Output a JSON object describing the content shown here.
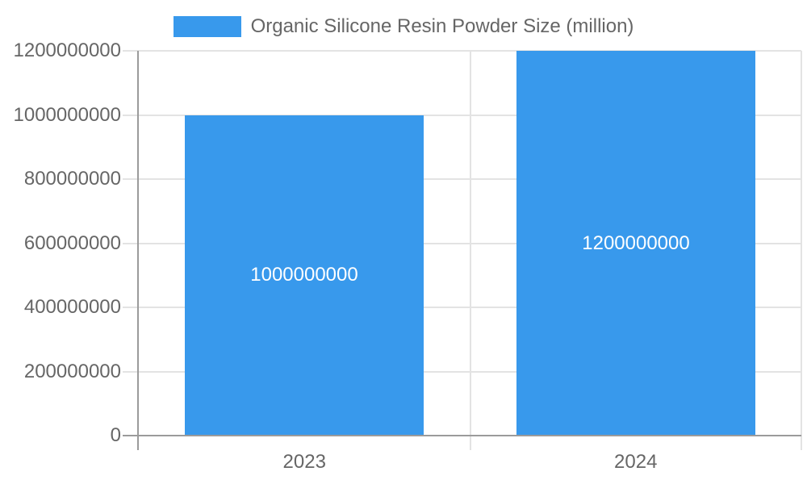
{
  "legend": {
    "label": "Organic Silicone Resin Powder Size (million)"
  },
  "chart_data": {
    "type": "bar",
    "title": "Organic Silicone Resin Powder Size (million)",
    "categories": [
      "2023",
      "2024"
    ],
    "series": [
      {
        "name": "Organic Silicone Resin Powder Size (million)",
        "values": [
          1000000000,
          1200000000
        ]
      }
    ],
    "value_labels": [
      "1000000000",
      "1200000000"
    ],
    "yticks": [
      "0",
      "200000000",
      "400000000",
      "600000000",
      "800000000",
      "1000000000",
      "1200000000"
    ],
    "ylim": [
      0,
      1200000000
    ],
    "xlabel": "",
    "ylabel": "",
    "grid": true,
    "legend_position": "top-center",
    "bar_percentage_of_category": 0.72,
    "colors": {
      "bar": "#3899ec",
      "value_label": "#ffffff",
      "axis_text": "#666666",
      "grid_line": "#e3e3e3",
      "axis_line": "#9b9b9b",
      "background": "#ffffff"
    }
  }
}
